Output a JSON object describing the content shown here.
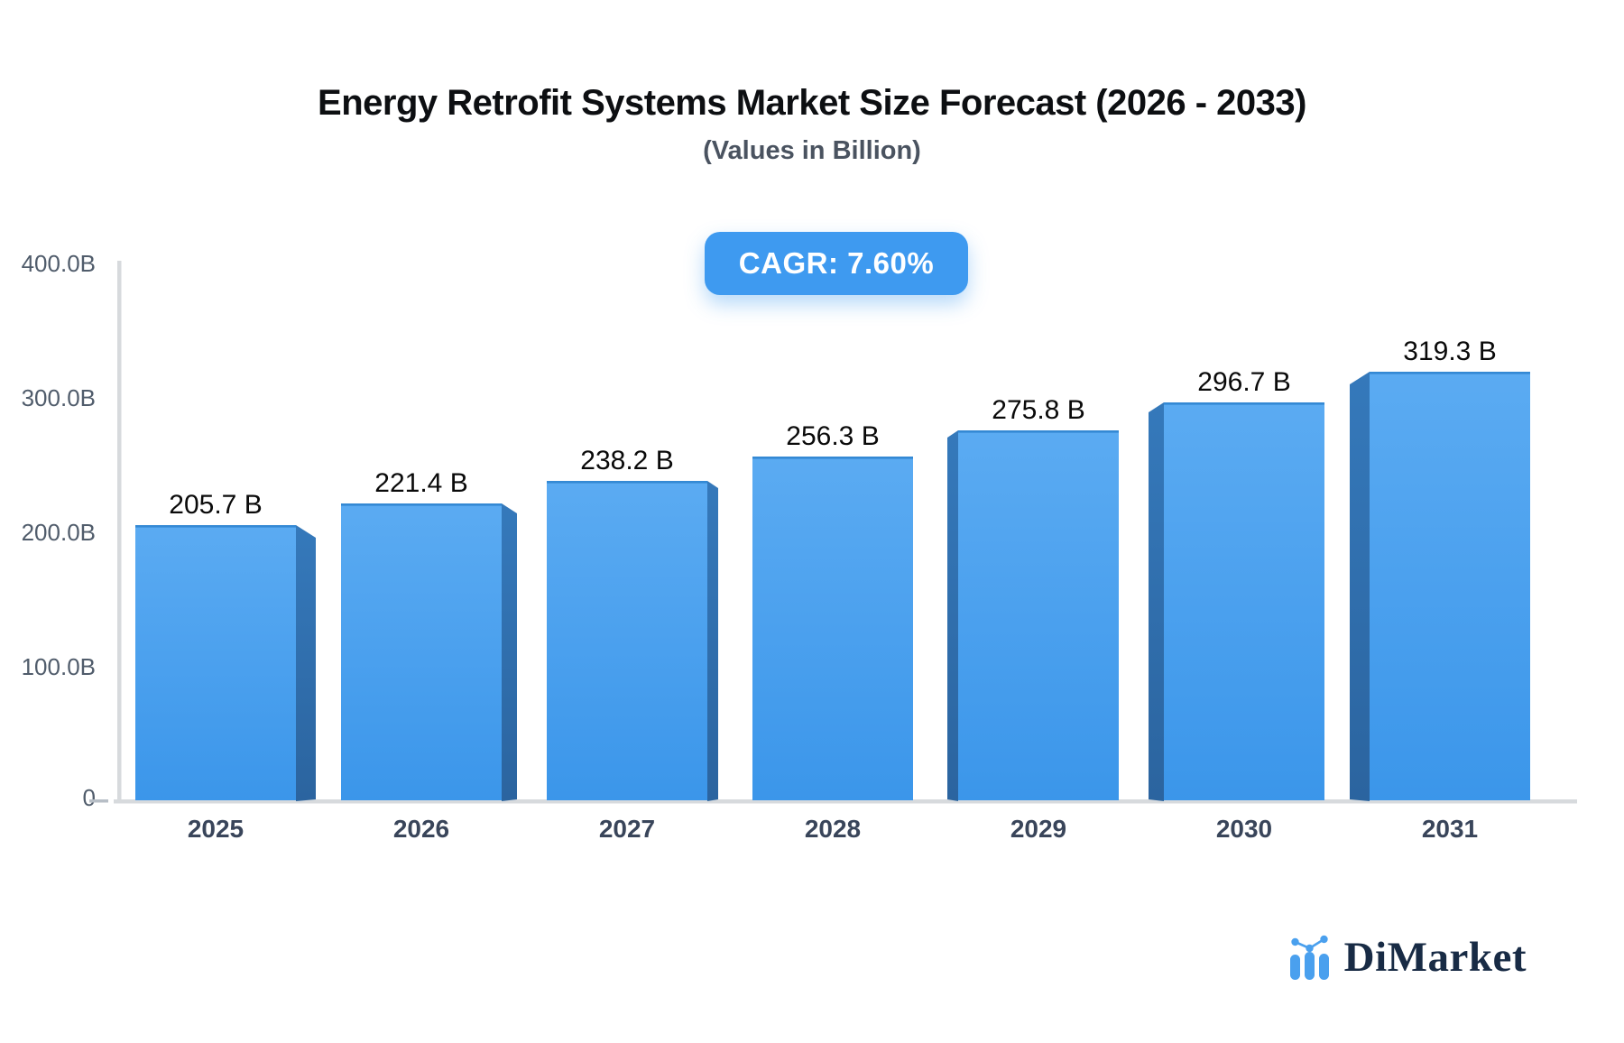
{
  "chart_data": {
    "type": "bar",
    "style": "3d-column-perspective",
    "title": "Energy Retrofit Systems Market Size Forecast (2026 - 2033)",
    "subtitle": "(Values in Billion)",
    "annotation": "CAGR: 7.60%",
    "categories": [
      "2025",
      "2026",
      "2027",
      "2028",
      "2029",
      "2030",
      "2031"
    ],
    "values": [
      205.7,
      221.4,
      238.2,
      256.3,
      275.8,
      296.7,
      319.3
    ],
    "value_labels": [
      "205.7 B",
      "221.4 B",
      "238.2 B",
      "256.3 B",
      "275.8 B",
      "296.7 B",
      "319.3 B"
    ],
    "unit": "Billion",
    "xlabel": "",
    "ylabel": "",
    "ylim": [
      0,
      400
    ],
    "yticks": [
      {
        "value": 400,
        "label": "400.0B"
      },
      {
        "value": 300,
        "label": "300.0B"
      },
      {
        "value": 200,
        "label": "200.0B"
      },
      {
        "value": 100,
        "label": "100.0B"
      },
      {
        "value": 0,
        "label": "0"
      }
    ],
    "grid": false,
    "legend": false
  },
  "footer": {
    "brand": "DiMarket"
  },
  "colors": {
    "accent_blue": "#3e9af0",
    "bar_front_top": "#5babf2",
    "bar_front_bottom": "#3b96ea",
    "bar_side_top": "#3579bb",
    "bar_side_bottom": "#2b649f",
    "bar_top_edge": "#3489d4",
    "axis": "#d7dadd",
    "zero_tick": "#b7bec6",
    "title_text": "#0d0f12",
    "subtitle_text": "#4a5360",
    "value_label_text": "#0a0a0a",
    "x_label_text": "#39455a",
    "y_label_text": "#505c6b",
    "logo_navy": "#182b45",
    "logo_blue": "#4aa0ee",
    "badge_text": "#ffffff"
  }
}
